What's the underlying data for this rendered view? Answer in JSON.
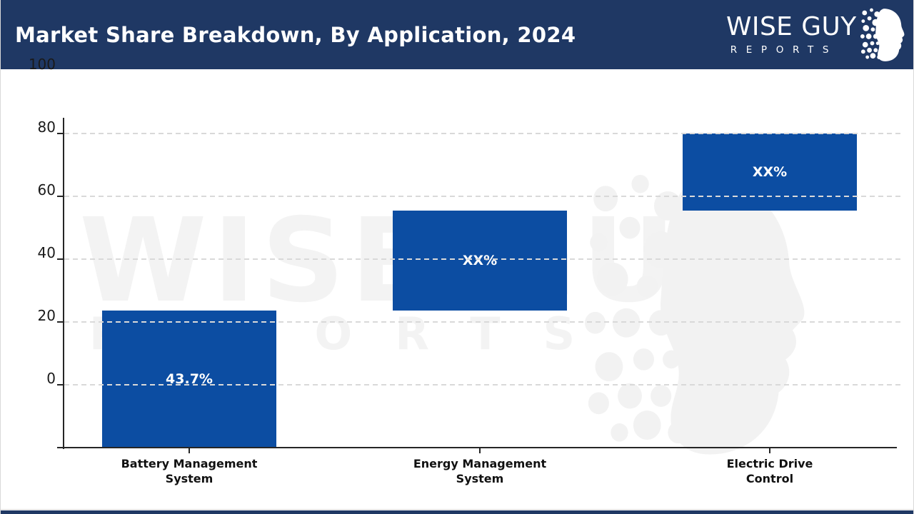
{
  "header": {
    "title": "Market Share Breakdown, By Application, 2024",
    "bg_color": "#1F3864",
    "logo": {
      "line1": "WISE GUY",
      "line2": "REPORTS"
    }
  },
  "watermark": {
    "line1": "WISE GUY",
    "line2": "REPORTS",
    "color": "#f3f3f3"
  },
  "chart_data": {
    "type": "bar",
    "subtype": "waterfall",
    "title": "Market Share Breakdown, By Application, 2024",
    "categories": [
      {
        "line1": "Battery Management",
        "line2": "System"
      },
      {
        "line1": "Energy Management",
        "line2": "System"
      },
      {
        "line1": "Electric Drive",
        "line2": "Control"
      }
    ],
    "segments": [
      {
        "start": 0,
        "end": 43.7,
        "label": "43.7%"
      },
      {
        "start": 43.7,
        "end": 75.5,
        "label": "XX%"
      },
      {
        "start": 75.5,
        "end": 100,
        "label": "XX%"
      }
    ],
    "ylim": [
      0,
      100
    ],
    "yticks": [
      0,
      20,
      40,
      60,
      80,
      100
    ],
    "xlabel": "",
    "ylabel": "",
    "legend": "none",
    "grid": "dashed-horizontal-over-bars",
    "bar_color": "#0C4DA2",
    "bar_label_color": "#FFFFFF",
    "axis_color": "#262626",
    "gridline_color": "#D9D9D9"
  }
}
